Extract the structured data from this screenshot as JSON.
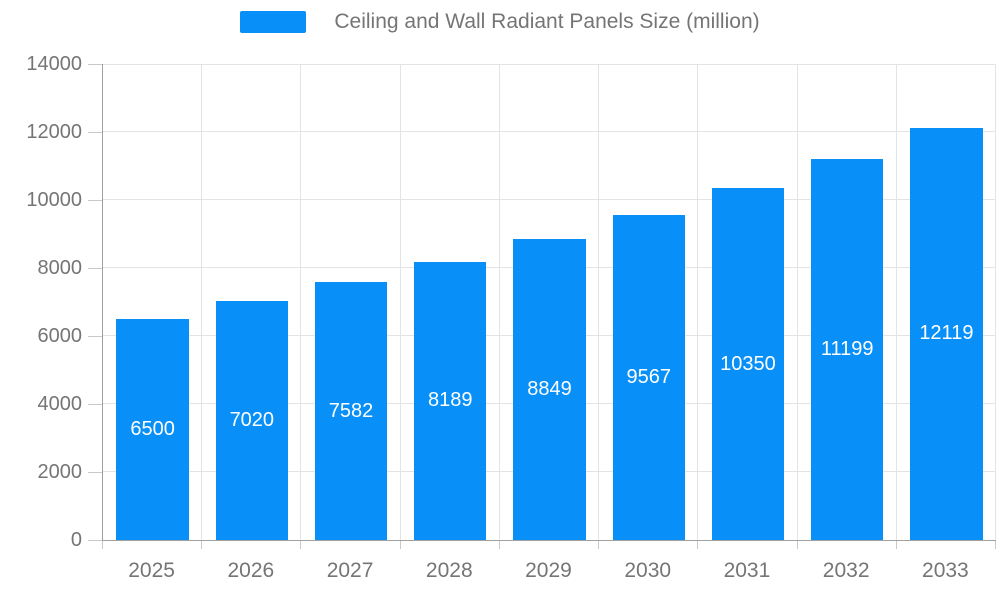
{
  "legend": {
    "label": "Ceiling and Wall Radiant Panels Size (million)"
  },
  "colors": {
    "bar": "#0890f8",
    "grid": "#e3e3e3",
    "axis": "#a0a0a0",
    "tick": "#c9c9c9",
    "text": "#757575",
    "value_text": "#ffffff",
    "background": "#ffffff"
  },
  "chart_data": {
    "type": "bar",
    "title": "Ceiling and Wall Radiant Panels Size (million)",
    "categories": [
      "2025",
      "2026",
      "2027",
      "2028",
      "2029",
      "2030",
      "2031",
      "2032",
      "2033"
    ],
    "values": [
      6500,
      7020,
      7582,
      8189,
      8849,
      9567,
      10350,
      11199,
      12119
    ],
    "xlabel": "",
    "ylabel": "",
    "ylim": [
      0,
      14000
    ],
    "y_ticks": [
      0,
      2000,
      4000,
      6000,
      8000,
      10000,
      12000,
      14000
    ],
    "grid": true,
    "legend_position": "top",
    "value_labels": "inside-center"
  }
}
